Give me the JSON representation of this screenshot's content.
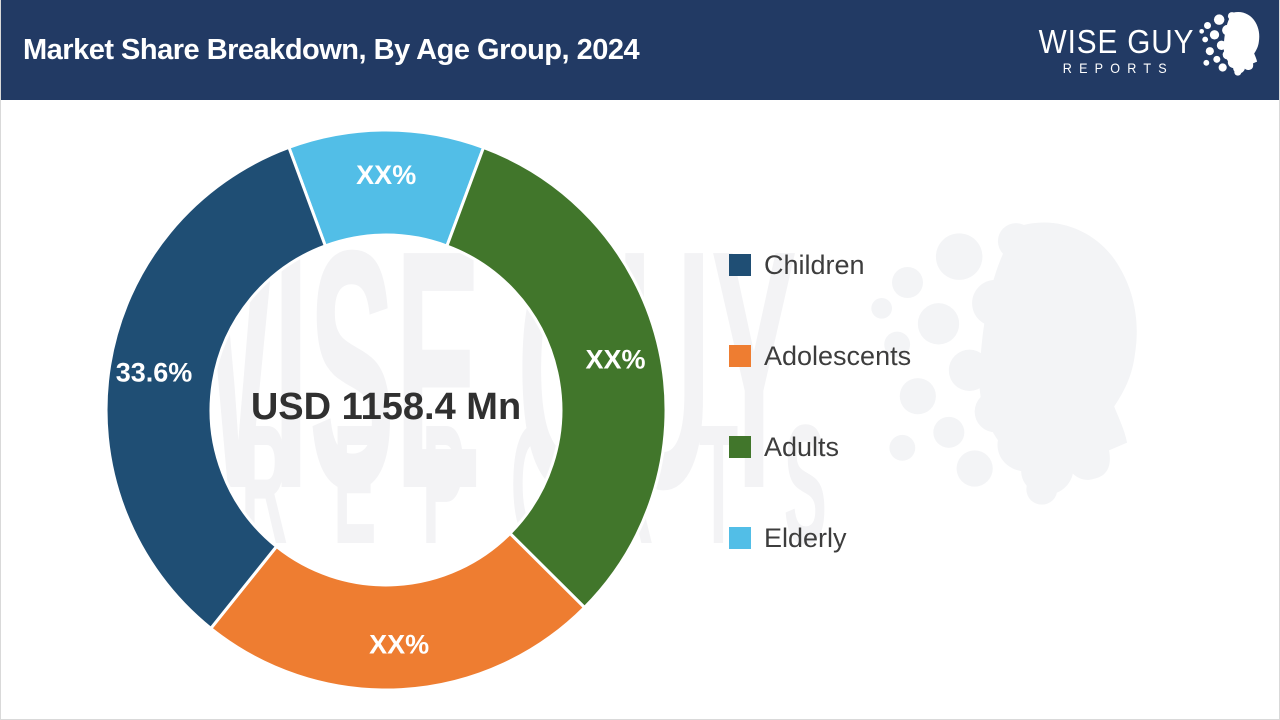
{
  "header": {
    "title": "Market Share Breakdown, By Age Group, 2024",
    "background_color": "#223A64",
    "logo": {
      "line1": "WISE GUY",
      "line2": "REPORTS"
    }
  },
  "watermark": {
    "line1": "WISE GUY",
    "line2": "REPORTS"
  },
  "chart_data": {
    "type": "pie",
    "donut": true,
    "title": "Market Share Breakdown, By Age Group, 2024",
    "center_label": "USD 1158.4 Mn",
    "start_angle_deg": -20.3,
    "legend_position": "right",
    "series": [
      {
        "name": "Elderly",
        "display_label": "XX%",
        "value_pct_est": 11.3,
        "color": "#52BEE7"
      },
      {
        "name": "Adults",
        "display_label": "XX%",
        "value_pct_est": 31.8,
        "color": "#41762B"
      },
      {
        "name": "Adolescents",
        "display_label": "XX%",
        "value_pct_est": 23.3,
        "color": "#EE7D31"
      },
      {
        "name": "Children",
        "display_label": "33.6%",
        "value_pct_est": 33.6,
        "color": "#1F4E74"
      }
    ]
  },
  "legend": {
    "items": [
      {
        "label": "Children",
        "color": "#1F4E74"
      },
      {
        "label": "Adolescents",
        "color": "#EE7D31"
      },
      {
        "label": "Adults",
        "color": "#41762B"
      },
      {
        "label": "Elderly",
        "color": "#52BEE7"
      }
    ]
  }
}
